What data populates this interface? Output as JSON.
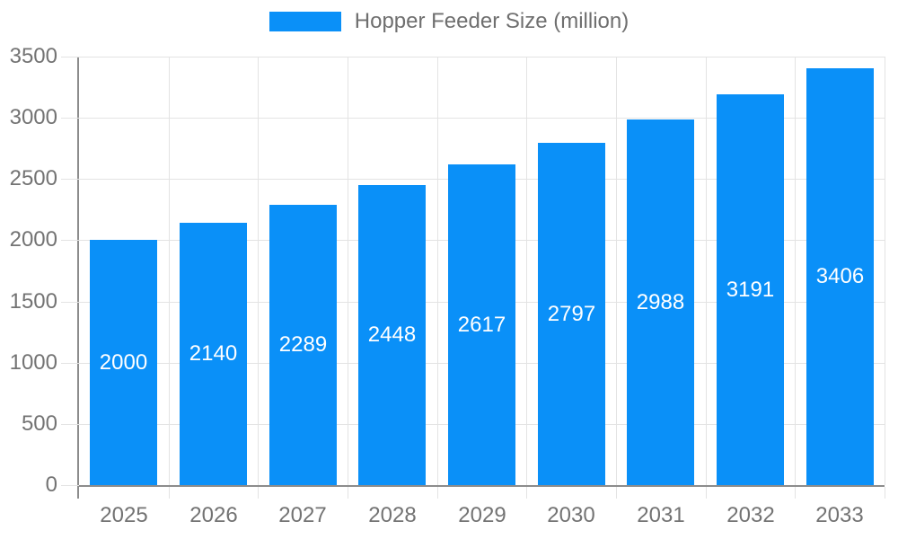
{
  "chart_data": {
    "type": "bar",
    "title": "",
    "categories": [
      "2025",
      "2026",
      "2027",
      "2028",
      "2029",
      "2030",
      "2031",
      "2032",
      "2033"
    ],
    "series": [
      {
        "name": "Hopper Feeder Size (million)",
        "values": [
          2000,
          2140,
          2289,
          2448,
          2617,
          2797,
          2988,
          3191,
          3406
        ]
      }
    ],
    "xlabel": "",
    "ylabel": "",
    "ylim": [
      0,
      3500
    ],
    "y_ticks": [
      0,
      500,
      1000,
      1500,
      2000,
      2500,
      3000,
      3500
    ],
    "grid": true,
    "legend_position": "top-center",
    "value_labels_shown": true,
    "value_label_position": "inside-center"
  },
  "legend": {
    "label": "Hopper Feeder Size (million)"
  },
  "colors": {
    "bar": "#0a90f8",
    "axis_line": "#8c8c8c",
    "grid_line": "#e3e3e3",
    "tick": "#e3e3e3",
    "axis_text": "#737373",
    "legend_text": "#6f6f6f",
    "value_label_text": "#ffffff",
    "background": "#ffffff"
  }
}
